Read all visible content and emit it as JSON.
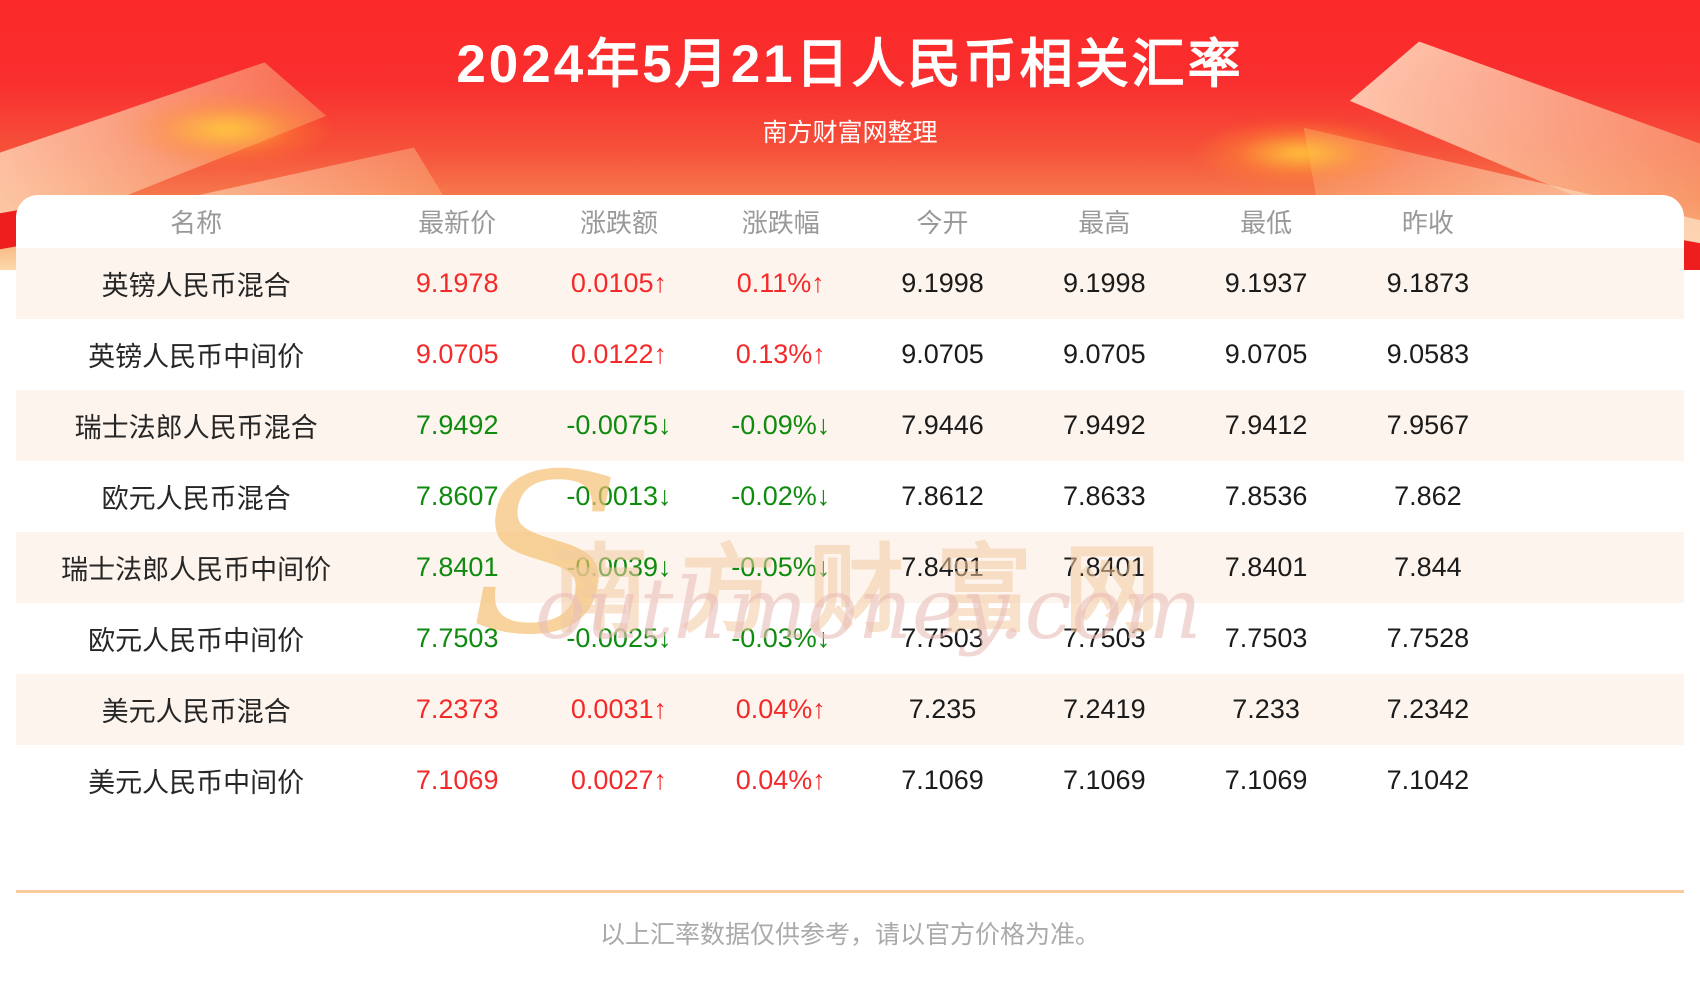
{
  "header": {
    "title": "2024年5月21日人民币相关汇率",
    "subtitle": "南方财富网整理"
  },
  "watermark": {
    "initial": "S",
    "cjk": "南方财富网",
    "latin": "outhmoney.com"
  },
  "footer": {
    "note": "以上汇率数据仅供参考，请以官方价格为准。"
  },
  "colors": {
    "banner_red": "#fa2929",
    "up_red": "#f42a2a",
    "down_green": "#0f8b0f",
    "stripe_cream": "#fdf4ed",
    "divider_orange": "#f7cb9b",
    "column_header_gray": "#999999"
  },
  "chart_data": {
    "type": "table",
    "title": "2024年5月21日人民币相关汇率",
    "subtitle": "南方财富网整理",
    "columns": [
      "名称",
      "最新价",
      "涨跌额",
      "涨跌幅",
      "今开",
      "最高",
      "最低",
      "昨收"
    ],
    "rows": [
      {
        "name": "英镑人民币混合",
        "latest": "9.1978",
        "change": "0.0105↑",
        "change_pct": "0.11%↑",
        "open": "9.1998",
        "high": "9.1998",
        "low": "9.1937",
        "prev_close": "9.1873",
        "direction": "up"
      },
      {
        "name": "英镑人民币中间价",
        "latest": "9.0705",
        "change": "0.0122↑",
        "change_pct": "0.13%↑",
        "open": "9.0705",
        "high": "9.0705",
        "low": "9.0705",
        "prev_close": "9.0583",
        "direction": "up"
      },
      {
        "name": "瑞士法郎人民币混合",
        "latest": "7.9492",
        "change": "-0.0075↓",
        "change_pct": "-0.09%↓",
        "open": "7.9446",
        "high": "7.9492",
        "low": "7.9412",
        "prev_close": "7.9567",
        "direction": "down"
      },
      {
        "name": "欧元人民币混合",
        "latest": "7.8607",
        "change": "-0.0013↓",
        "change_pct": "-0.02%↓",
        "open": "7.8612",
        "high": "7.8633",
        "low": "7.8536",
        "prev_close": "7.862",
        "direction": "down"
      },
      {
        "name": "瑞士法郎人民币中间价",
        "latest": "7.8401",
        "change": "-0.0039↓",
        "change_pct": "-0.05%↓",
        "open": "7.8401",
        "high": "7.8401",
        "low": "7.8401",
        "prev_close": "7.844",
        "direction": "down"
      },
      {
        "name": "欧元人民币中间价",
        "latest": "7.7503",
        "change": "-0.0025↓",
        "change_pct": "-0.03%↓",
        "open": "7.7503",
        "high": "7.7503",
        "low": "7.7503",
        "prev_close": "7.7528",
        "direction": "down"
      },
      {
        "name": "美元人民币混合",
        "latest": "7.2373",
        "change": "0.0031↑",
        "change_pct": "0.04%↑",
        "open": "7.235",
        "high": "7.2419",
        "low": "7.233",
        "prev_close": "7.2342",
        "direction": "up"
      },
      {
        "name": "美元人民币中间价",
        "latest": "7.1069",
        "change": "0.0027↑",
        "change_pct": "0.04%↑",
        "open": "7.1069",
        "high": "7.1069",
        "low": "7.1069",
        "prev_close": "7.1042",
        "direction": "up"
      }
    ]
  }
}
